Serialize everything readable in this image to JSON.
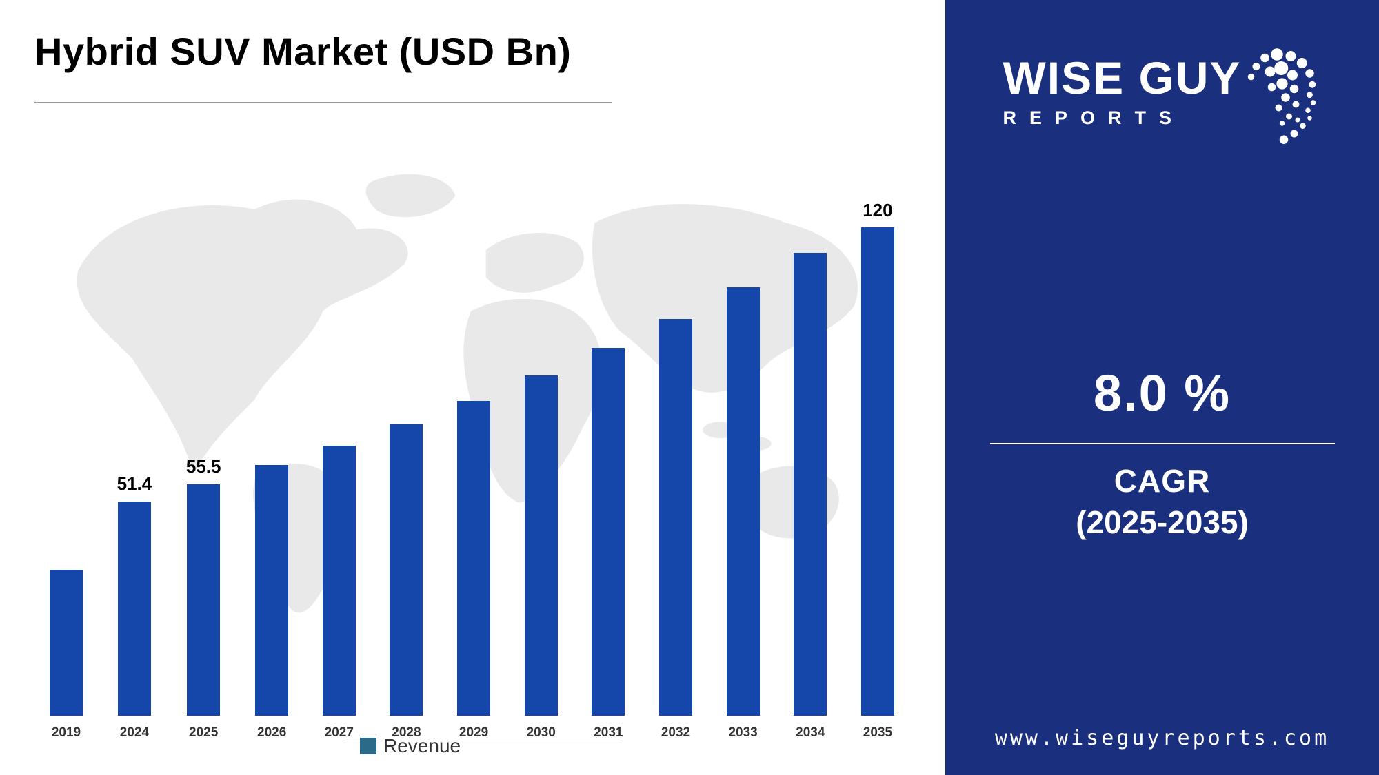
{
  "title": "Hybrid SUV Market (USD Bn)",
  "chart_data": {
    "type": "bar",
    "title": "Hybrid SUV Market (USD Bn)",
    "categories": [
      "2019",
      "2024",
      "2025",
      "2026",
      "2027",
      "2028",
      "2029",
      "2030",
      "2031",
      "2032",
      "2033",
      "2034",
      "2035"
    ],
    "values": [
      35,
      51.4,
      55.5,
      60,
      64.7,
      69.9,
      75.5,
      81.5,
      88.1,
      95.1,
      102.7,
      110.9,
      120
    ],
    "value_labels": [
      "",
      "51.4",
      "55.5",
      "",
      "",
      "",
      "",
      "",
      "",
      "",
      "",
      "",
      "120"
    ],
    "series_name": "Revenue",
    "legend": [
      "Revenue"
    ],
    "legend_position": "bottom",
    "bar_color": "#1547ab",
    "legend_swatch_color": "#2b6a88",
    "xlabel": "",
    "ylabel": "",
    "ylim": [
      0,
      120
    ],
    "grid": false
  },
  "sidebar": {
    "logo": {
      "line1": "WISE GUY",
      "line2": "REPORTS"
    },
    "cagr_value": "8.0 %",
    "cagr_label": "CAGR",
    "cagr_period": "(2025-2035)",
    "website": "www.wiseguyreports.com",
    "background_color": "#1b2f7f"
  }
}
